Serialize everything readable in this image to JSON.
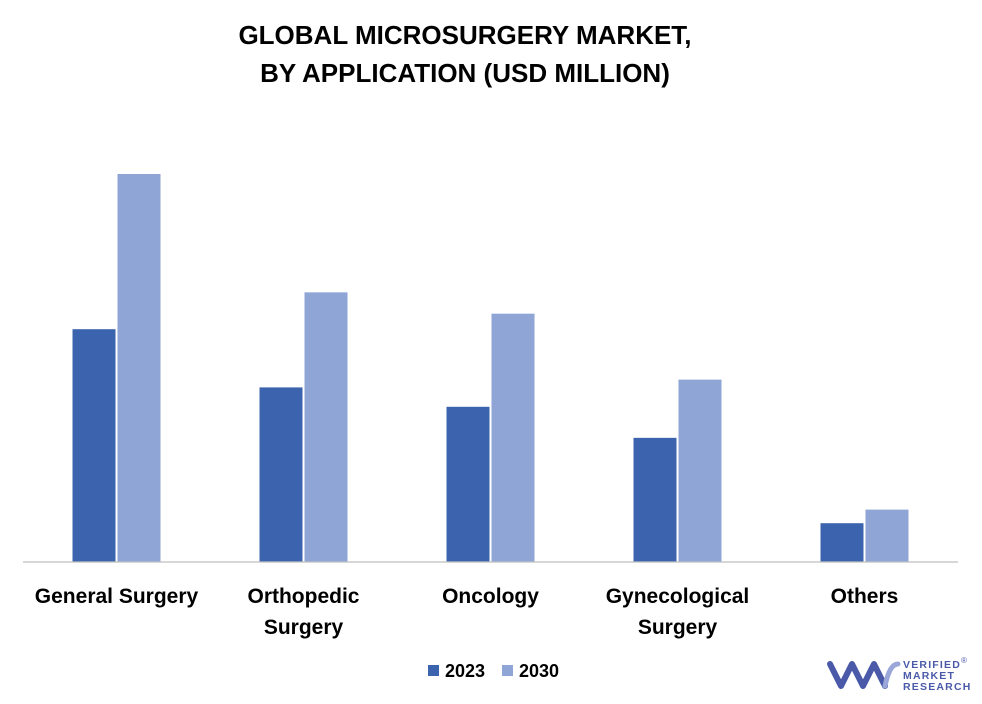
{
  "chart_data": {
    "type": "bar",
    "title": [
      "GLOBAL MICROSURGERY MARKET,",
      "BY APPLICATION (USD MILLION)"
    ],
    "categories": [
      [
        "General Surgery"
      ],
      [
        "Orthopedic",
        "Surgery"
      ],
      [
        "Oncology"
      ],
      [
        "Gynecological",
        "Surgery"
      ],
      [
        "Others"
      ]
    ],
    "series": [
      {
        "name": "2023",
        "color": "#3c64ae",
        "values": [
          60,
          45,
          40,
          32,
          10
        ]
      },
      {
        "name": "2030",
        "color": "#8fa5d6",
        "values": [
          100,
          69.5,
          64,
          47,
          13.5
        ]
      }
    ],
    "ylim": [
      0,
      100
    ],
    "grid": false,
    "legend": "bottom-center",
    "baseline_color": "#bfbfbf"
  },
  "logo": {
    "lines": [
      "VERIFIED",
      "MARKET",
      "RESEARCH"
    ],
    "reg": "®",
    "color": "#4a5aa8",
    "icon": "vmr-logo-icon"
  }
}
